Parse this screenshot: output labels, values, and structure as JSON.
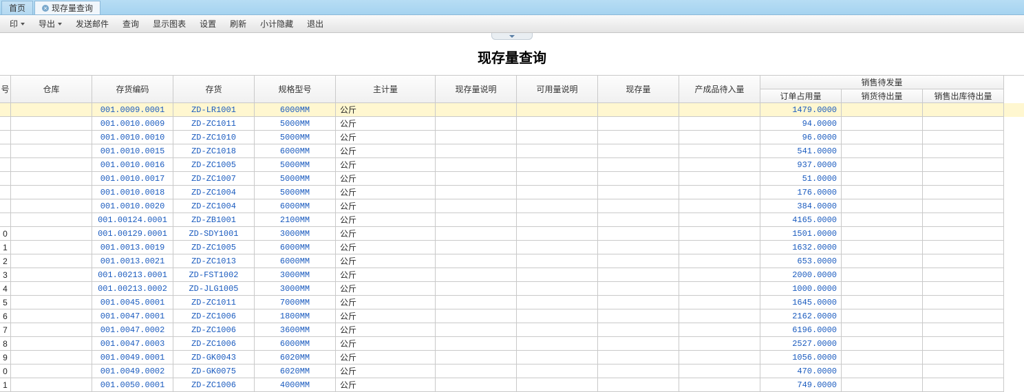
{
  "tabs": {
    "home": "首页",
    "active": "现存量查询"
  },
  "toolbar": {
    "print": "印",
    "export": "导出",
    "send_mail": "发送邮件",
    "query": "查询",
    "show_chart": "显示图表",
    "settings": "设置",
    "refresh": "刷新",
    "subtotal_hide": "小计隐藏",
    "exit": "退出"
  },
  "title": "现存量查询",
  "columns": {
    "row_no": "号",
    "warehouse": "仓库",
    "inv_code": "存货编码",
    "inv": "存货",
    "spec": "规格型号",
    "main_unit": "主计量",
    "onhand_desc": "现存量说明",
    "avail_desc": "可用量说明",
    "onhand_qty": "现存量",
    "finished_in": "产成品待入量",
    "sales_pending_group": "销售待发量",
    "order_occupy": "订单占用量",
    "sales_out_pending": "销货待出量",
    "sales_whs_pending": "销售出库待出量"
  },
  "unit_label": "公斤",
  "rows": [
    {
      "n": "",
      "code": "001.0009.0001",
      "inv": "ZD-LR1001",
      "spec": "6000MM",
      "order": "1479.0000",
      "hl": true
    },
    {
      "n": "",
      "code": "001.0010.0009",
      "inv": "ZD-ZC1011",
      "spec": "5000MM",
      "order": "94.0000"
    },
    {
      "n": "",
      "code": "001.0010.0010",
      "inv": "ZD-ZC1010",
      "spec": "5000MM",
      "order": "96.0000"
    },
    {
      "n": "",
      "code": "001.0010.0015",
      "inv": "ZD-ZC1018",
      "spec": "6000MM",
      "order": "541.0000"
    },
    {
      "n": "",
      "code": "001.0010.0016",
      "inv": "ZD-ZC1005",
      "spec": "5000MM",
      "order": "937.0000"
    },
    {
      "n": "",
      "code": "001.0010.0017",
      "inv": "ZD-ZC1007",
      "spec": "5000MM",
      "order": "51.0000"
    },
    {
      "n": "",
      "code": "001.0010.0018",
      "inv": "ZD-ZC1004",
      "spec": "5000MM",
      "order": "176.0000"
    },
    {
      "n": "",
      "code": "001.0010.0020",
      "inv": "ZD-ZC1004",
      "spec": "6000MM",
      "order": "384.0000"
    },
    {
      "n": "",
      "code": "001.00124.0001",
      "inv": "ZD-ZB1001",
      "spec": "2100MM",
      "order": "4165.0000"
    },
    {
      "n": "0",
      "code": "001.00129.0001",
      "inv": "ZD-SDY1001",
      "spec": "3000MM",
      "order": "1501.0000"
    },
    {
      "n": "1",
      "code": "001.0013.0019",
      "inv": "ZD-ZC1005",
      "spec": "6000MM",
      "order": "1632.0000"
    },
    {
      "n": "2",
      "code": "001.0013.0021",
      "inv": "ZD-ZC1013",
      "spec": "6000MM",
      "order": "653.0000"
    },
    {
      "n": "3",
      "code": "001.00213.0001",
      "inv": "ZD-FST1002",
      "spec": "3000MM",
      "order": "2000.0000"
    },
    {
      "n": "4",
      "code": "001.00213.0002",
      "inv": "ZD-JLG1005",
      "spec": "3000MM",
      "order": "1000.0000"
    },
    {
      "n": "5",
      "code": "001.0045.0001",
      "inv": "ZD-ZC1011",
      "spec": "7000MM",
      "order": "1645.0000"
    },
    {
      "n": "6",
      "code": "001.0047.0001",
      "inv": "ZD-ZC1006",
      "spec": "1800MM",
      "order": "2162.0000"
    },
    {
      "n": "7",
      "code": "001.0047.0002",
      "inv": "ZD-ZC1006",
      "spec": "3600MM",
      "order": "6196.0000"
    },
    {
      "n": "8",
      "code": "001.0047.0003",
      "inv": "ZD-ZC1006",
      "spec": "6000MM",
      "order": "2527.0000"
    },
    {
      "n": "9",
      "code": "001.0049.0001",
      "inv": "ZD-GK0043",
      "spec": "6020MM",
      "order": "1056.0000"
    },
    {
      "n": "0",
      "code": "001.0049.0002",
      "inv": "ZD-GK0075",
      "spec": "6020MM",
      "order": "470.0000"
    },
    {
      "n": "1",
      "code": "001.0050.0001",
      "inv": "ZD-ZC1006",
      "spec": "4000MM",
      "order": "749.0000"
    }
  ]
}
